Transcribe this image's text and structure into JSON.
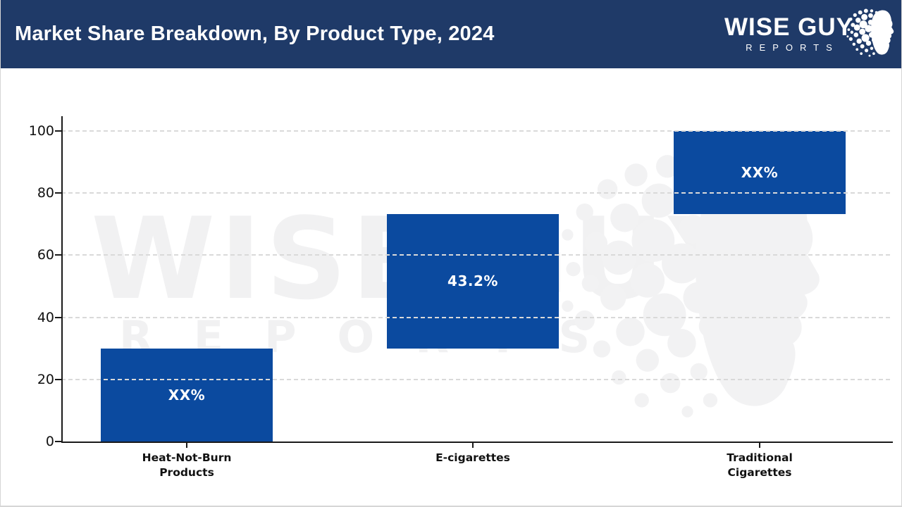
{
  "header": {
    "title": "Market Share Breakdown, By Product Type, 2024",
    "bg_color": "#1f3a68",
    "logo": {
      "name": "WISE GUY",
      "tagline": "REPORTS",
      "icon": "dot-face-profile"
    }
  },
  "watermark": {
    "line1": "WISE GUY",
    "line2": "REPORTS",
    "icon": "dot-face-profile",
    "color": "#f1f1f2"
  },
  "chart_data": {
    "type": "bar",
    "subtype": "floating_stacked_percentage",
    "title": "Market Share Breakdown, By Product Type, 2024",
    "xlabel": "",
    "ylabel": "",
    "categories": [
      [
        "Heat-Not-Burn",
        "Products"
      ],
      [
        "E-cigarettes"
      ],
      [
        "Traditional",
        "Cigarettes"
      ]
    ],
    "segments": [
      {
        "category": "Heat-Not-Burn Products",
        "from": 0,
        "to": 30,
        "label": "XX%"
      },
      {
        "category": "E-cigarettes",
        "from": 30,
        "to": 73.2,
        "label": "43.2%",
        "value": 43.2
      },
      {
        "category": "Traditional Cigarettes",
        "from": 73.2,
        "to": 100,
        "label": "XX%"
      }
    ],
    "yticks": [
      0,
      20,
      40,
      60,
      80,
      100
    ],
    "ylim": [
      0,
      104.8
    ],
    "grid": {
      "axis": "y",
      "style": "dashed",
      "color": "#d9d9d9",
      "on_top": true
    },
    "legend": "none",
    "bar_color": "#0b4a9f",
    "bar_label_color": "#ffffff",
    "axis_color": "#1a1a1a"
  }
}
